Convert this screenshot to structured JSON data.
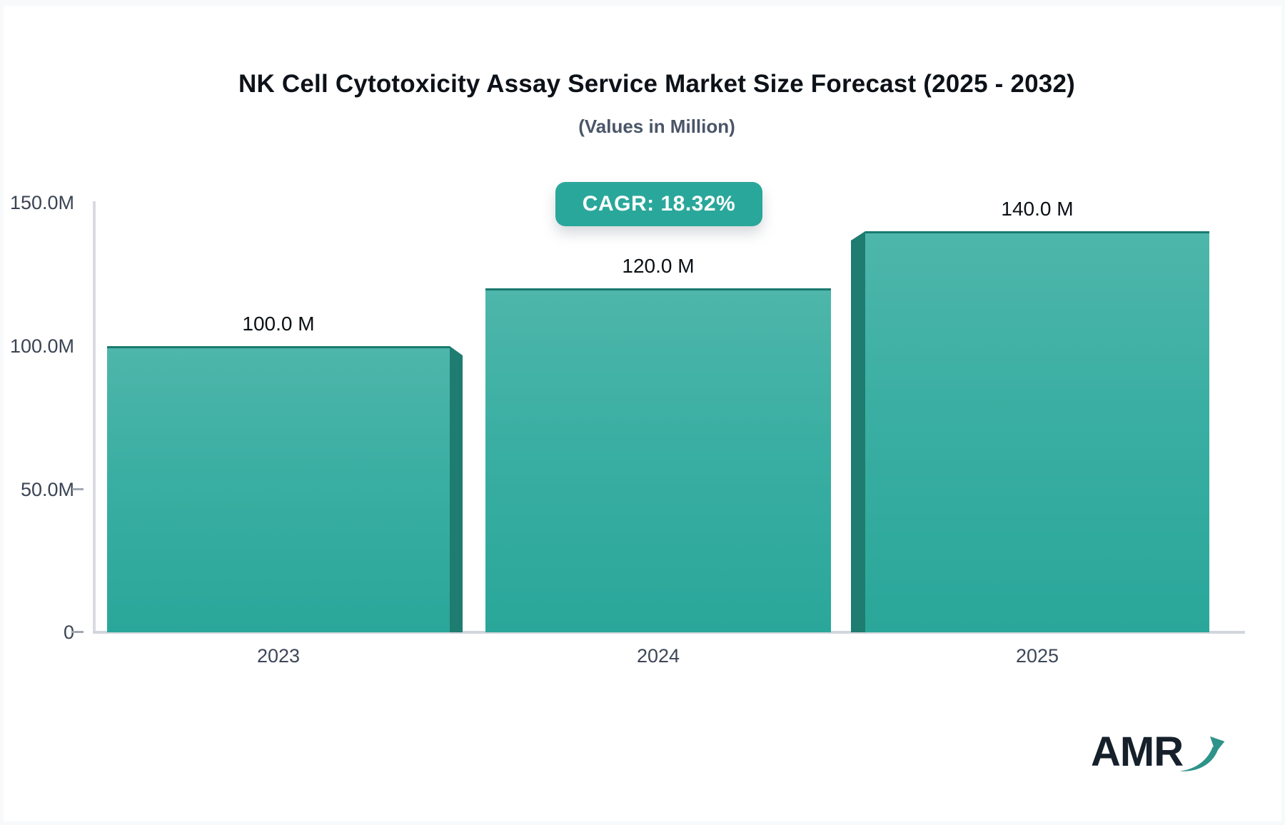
{
  "header": {
    "title": "NK Cell Cytotoxicity Assay Service Market Size Forecast (2025 - 2032)",
    "subtitle": "(Values in Million)"
  },
  "cagr_badge": {
    "label": "CAGR: 18.32%",
    "background": "#2aa79b",
    "text_color": "#ffffff"
  },
  "chart_data": {
    "type": "bar",
    "title": "NK Cell Cytotoxicity Assay Service Market Size Forecast (2025 - 2032)",
    "subtitle": "(Values in Million)",
    "categories": [
      "2023",
      "2024",
      "2025"
    ],
    "values": [
      100.0,
      120.0,
      140.0
    ],
    "value_labels": [
      "100.0 M",
      "120.0 M",
      "140.0 M"
    ],
    "unit": "Million",
    "cagr_label": "CAGR: 18.32%",
    "ylim": [
      0,
      150
    ],
    "ytick_labels": [
      "150.0M",
      "100.0M",
      "50.0M",
      "0"
    ],
    "grid": false,
    "legend": false,
    "bar_style": {
      "face_gradient_top": "#4eb6ab",
      "face_gradient_bottom": "#2aa79a",
      "top_border": "#1b7a6e",
      "side_face": "#1e7c70",
      "side_visible": [
        "right",
        "none",
        "left"
      ]
    },
    "axis_line_color": "#d5d8de",
    "label_color": "#3d4757"
  },
  "logo": {
    "text": "AMR",
    "text_color": "#15202b",
    "arrow_color": "#2e938a"
  }
}
